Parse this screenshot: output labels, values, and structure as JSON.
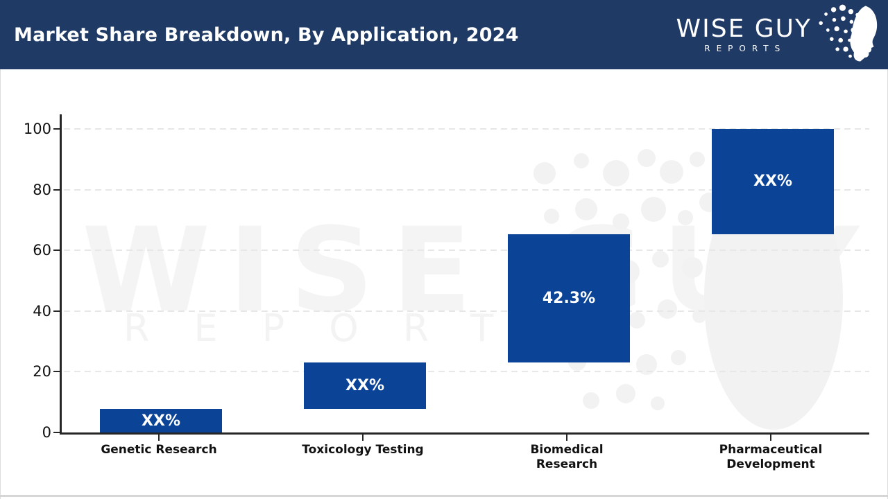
{
  "header": {
    "title": "Market Share Breakdown, By Application, 2024",
    "logo": {
      "wordmark": "WISE GUY",
      "sub": "REPORTS"
    }
  },
  "watermark": {
    "wordmark": "WISE GUY",
    "sub": "REPORTS"
  },
  "colors": {
    "header_bg": "#203a66",
    "bar_blue": "#0b4397",
    "bar_label_white": "#ffffff",
    "grid_gray": "#e7e7e7",
    "axis_black": "#262626",
    "frame_gray": "#d6d6d6",
    "watermark_gray": "#f4f4f4"
  },
  "chart_data": {
    "type": "bar",
    "variant": "floating_segment_breakdown",
    "title": "Market Share Breakdown, By Application, 2024",
    "xlabel": "",
    "ylabel": "",
    "ylim": [
      0,
      105
    ],
    "y_ticks": [
      0,
      20,
      40,
      60,
      80,
      100
    ],
    "grid": "horizontal-dashed",
    "legend": "none",
    "bar_color": "#0b4397",
    "categories": [
      "Genetic Research",
      "Toxicology Testing",
      "Biomedical Research",
      "Pharmaceutical Development"
    ],
    "category_label_lines": [
      [
        "Genetic Research"
      ],
      [
        "Toxicology Testing"
      ],
      [
        "Biomedical",
        "Research"
      ],
      [
        "Pharmaceutical",
        "Development"
      ]
    ],
    "segments": [
      {
        "category": "Genetic Research",
        "start": 0,
        "end": 7.7,
        "value_label": "XX%"
      },
      {
        "category": "Toxicology Testing",
        "start": 7.7,
        "end": 23.1,
        "value_label": "XX%"
      },
      {
        "category": "Biomedical Research",
        "start": 23.1,
        "end": 65.4,
        "value_label": "42.3%"
      },
      {
        "category": "Pharmaceutical Development",
        "start": 65.4,
        "end": 100,
        "value_label": "XX%"
      }
    ]
  }
}
